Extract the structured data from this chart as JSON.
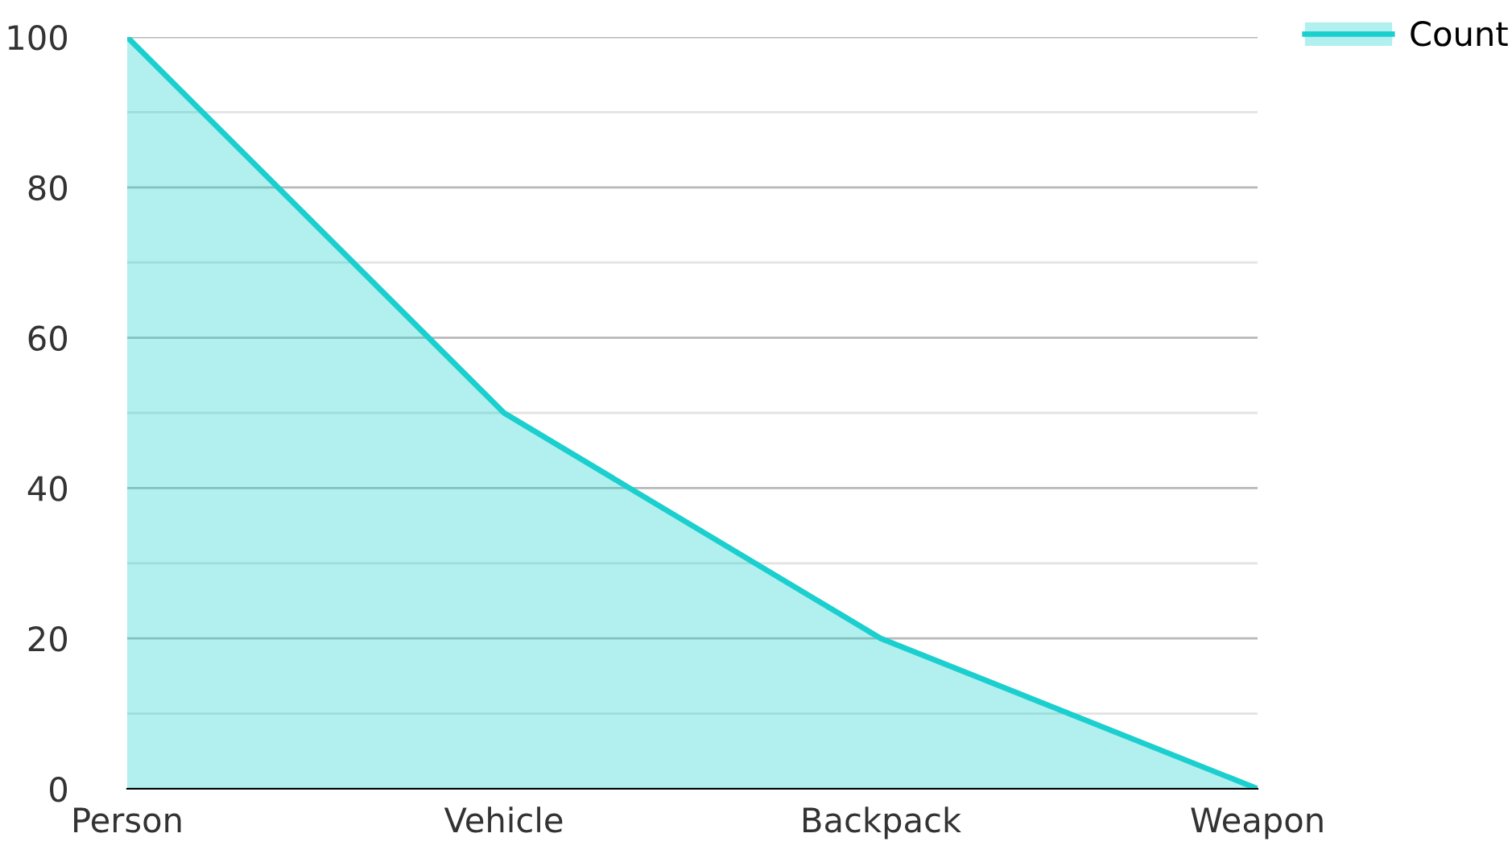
{
  "chart_data": {
    "type": "area",
    "categories": [
      "Person",
      "Vehicle",
      "Backpack",
      "Weapon"
    ],
    "series": [
      {
        "name": "Count",
        "color": "#1ccfcf",
        "values": [
          100,
          50,
          20,
          0
        ]
      }
    ],
    "ylim": [
      0,
      100
    ],
    "yticks": [
      0,
      {
        "value": 10,
        "label": null
      },
      20,
      {
        "value": 30,
        "label": null
      },
      40,
      {
        "value": 50,
        "label": null
      },
      60,
      {
        "value": 70,
        "label": null
      },
      80,
      {
        "value": 90,
        "label": null
      },
      100
    ],
    "grid": "y",
    "legend": "top right",
    "marker": "none",
    "line_style": "solid"
  }
}
